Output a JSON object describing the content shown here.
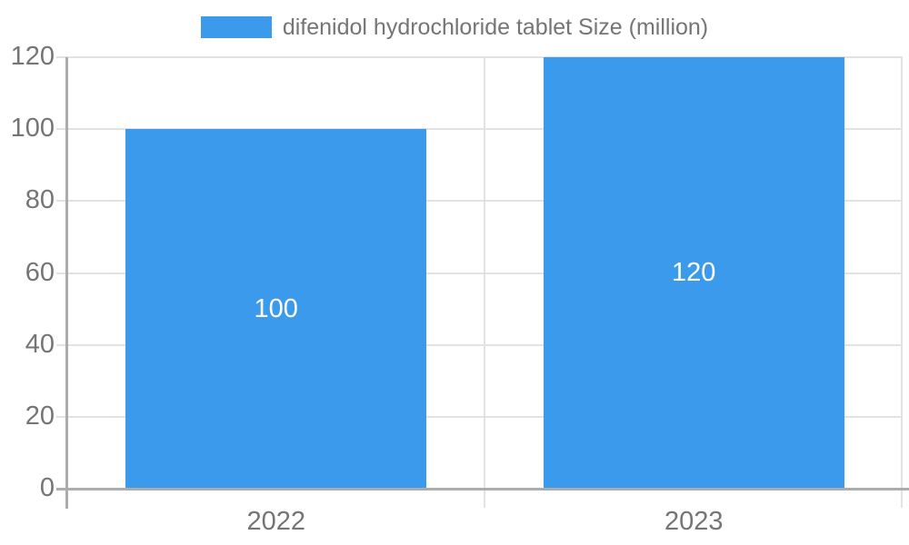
{
  "legend": {
    "label": "difenidol hydrochloride tablet Size (million)"
  },
  "colors": {
    "bar": "#3C9AEC",
    "grid": "#E2E2E2",
    "axis": "#ACACAC",
    "tick_text": "#757575",
    "bar_label": "#FFFFFF",
    "background": "#FFFFFF"
  },
  "chart_data": {
    "type": "bar",
    "title": "",
    "categories": [
      "2022",
      "2023"
    ],
    "series": [
      {
        "name": "difenidol hydrochloride tablet Size (million)",
        "values": [
          100,
          120
        ]
      }
    ],
    "data_labels": [
      100,
      120
    ],
    "data_label_position": "inside-center",
    "xlabel": "",
    "ylabel": "",
    "ylim": [
      0,
      120
    ],
    "yticks": [
      0,
      20,
      40,
      60,
      80,
      100,
      120
    ],
    "grid": true,
    "legend_position": "top-center"
  }
}
